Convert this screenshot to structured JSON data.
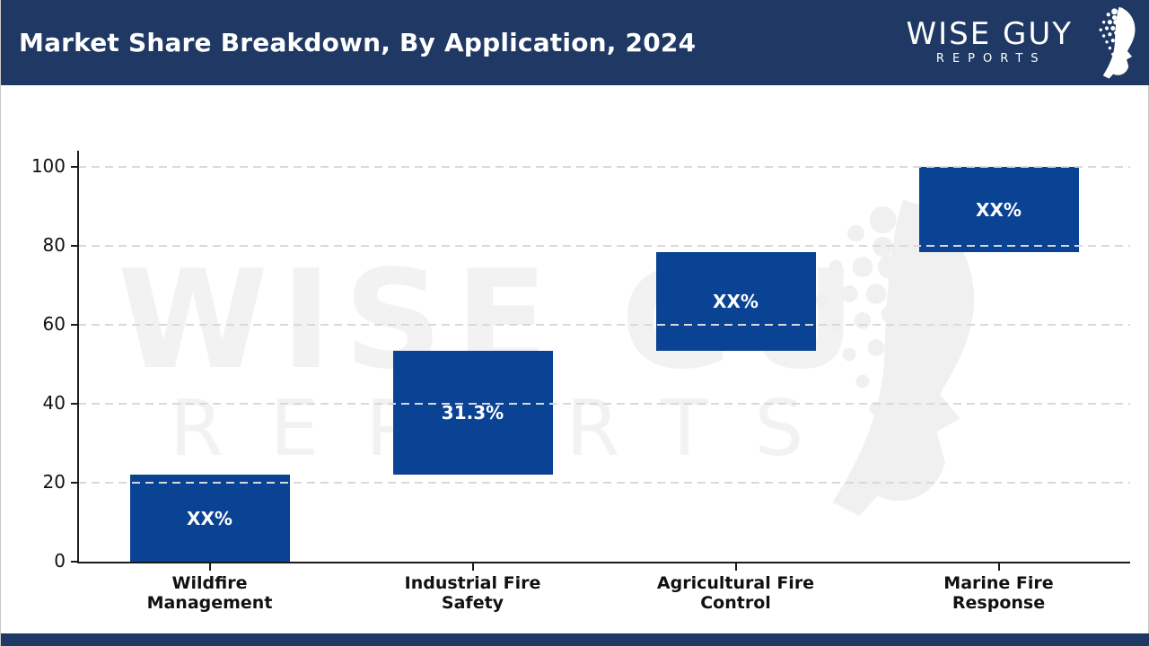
{
  "header": {
    "title": "Market Share Breakdown, By Application, 2024",
    "logo_word": "WISE GUY",
    "logo_sub": "REPORTS",
    "bg_color": "#1f3864",
    "text_color": "#ffffff"
  },
  "watermark": {
    "line1": "WISE GU",
    "line2": "REPORTS",
    "color": "#f2f2f2",
    "face_icon": "dotted-head-profile"
  },
  "footer": {
    "bg_color": "#1f3864"
  },
  "chart_data": {
    "type": "bar",
    "subtype": "waterfall",
    "title": "Market Share Breakdown, By Application, 2024",
    "categories": [
      [
        "Wildfire",
        "Management"
      ],
      [
        "Industrial Fire",
        "Safety"
      ],
      [
        "Agricultural Fire",
        "Control"
      ],
      [
        "Marine Fire",
        "Response"
      ]
    ],
    "segments": [
      {
        "category": "Wildfire Management",
        "start": 0,
        "end": 22,
        "label": "XX%"
      },
      {
        "category": "Industrial Fire Safety",
        "start": 22,
        "end": 53.3,
        "label": "31.3%"
      },
      {
        "category": "Agricultural Fire Control",
        "start": 53.3,
        "end": 78.3,
        "label": "XX%"
      },
      {
        "category": "Marine Fire Response",
        "start": 78.3,
        "end": 100,
        "label": "XX%"
      }
    ],
    "ylim": [
      0,
      100
    ],
    "yticks": [
      0,
      20,
      40,
      60,
      80,
      100
    ],
    "xlabel": "",
    "ylabel": "",
    "grid": "horizontal-dashed",
    "legend": "none",
    "bar_color": "#0a4294",
    "bar_label_color": "#ffffff",
    "axis_color": "#1a1a1a",
    "grid_color": "#d9d9d9"
  }
}
